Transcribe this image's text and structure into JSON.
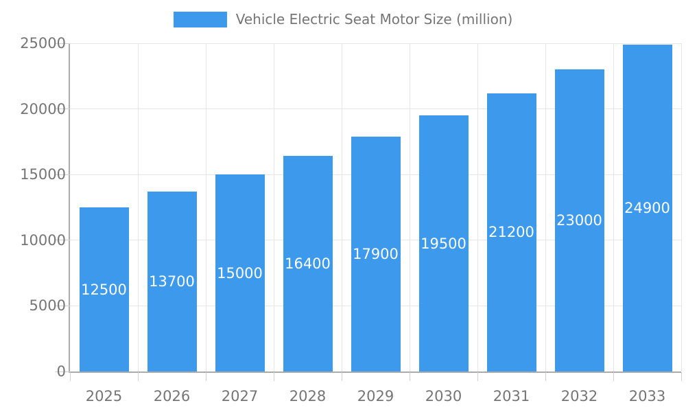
{
  "legend": {
    "label": "Vehicle Electric Seat Motor Size (million)"
  },
  "chart_data": {
    "type": "bar",
    "title": "Vehicle Electric Seat Motor Size (million)",
    "categories": [
      "2025",
      "2026",
      "2027",
      "2028",
      "2029",
      "2030",
      "2031",
      "2032",
      "2033"
    ],
    "values": [
      12500,
      13700,
      15000,
      16400,
      17900,
      19500,
      21200,
      23000,
      24900
    ],
    "data_labels": [
      "12500",
      "13700",
      "15000",
      "16400",
      "17900",
      "19500",
      "21200",
      "23000",
      "24900"
    ],
    "xlabel": "",
    "ylabel": "",
    "ylim": [
      0,
      25000
    ],
    "yticks": [
      0,
      5000,
      10000,
      15000,
      20000,
      25000
    ],
    "ytick_labels": [
      "0",
      "5000",
      "10000",
      "15000",
      "20000",
      "25000"
    ],
    "grid": true,
    "legend_position": "top-center",
    "colors": {
      "bar": "#3c99ec",
      "bar_label_text": "#ffffff",
      "axis_text": "#757575",
      "gridline": "#e6e6e6",
      "axis_line": "#ababab",
      "tick": "#cfcfcf",
      "background": "#ffffff"
    }
  }
}
